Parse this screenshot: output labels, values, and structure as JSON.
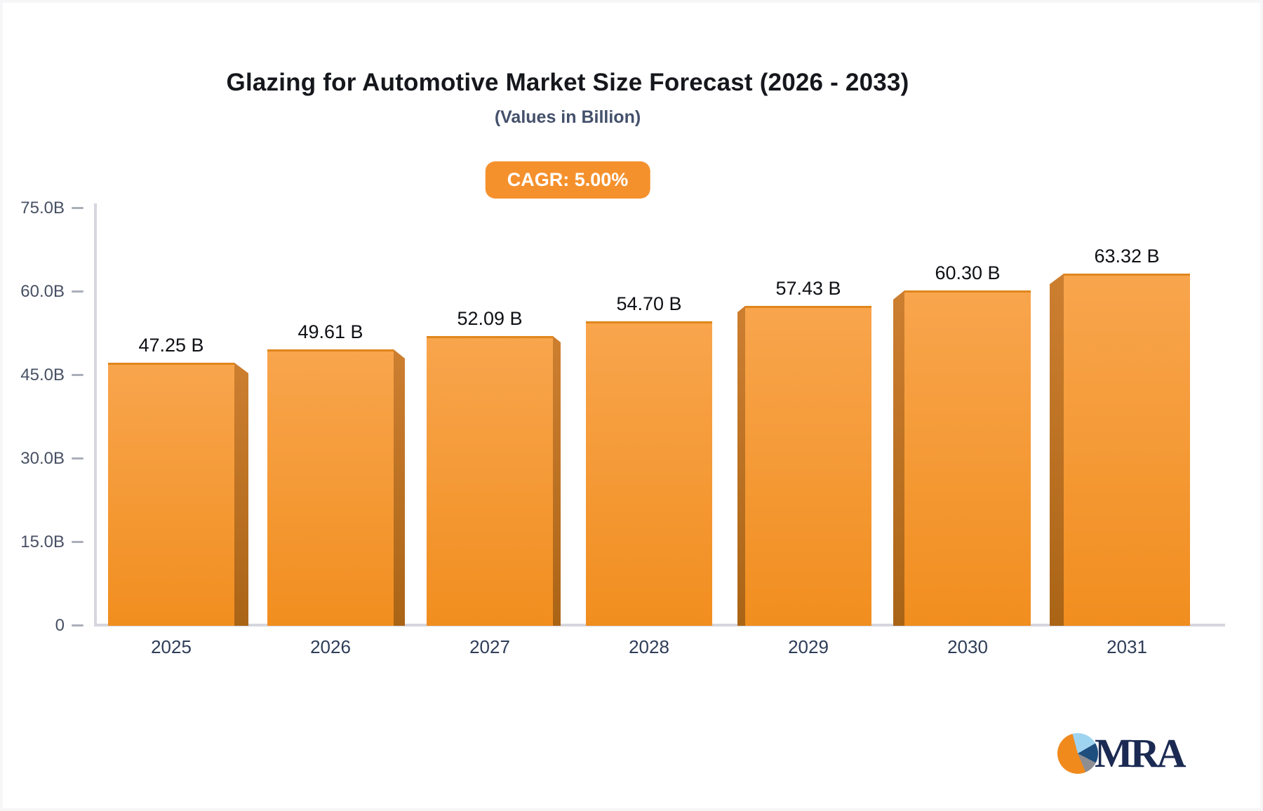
{
  "header": {
    "title": "Glazing for Automotive Market Size Forecast (2026 - 2033)",
    "subtitle": "(Values in Billion)",
    "cagr_label": "CAGR: 5.00%"
  },
  "chart_data": {
    "type": "bar",
    "title": "Glazing for Automotive Market Size Forecast (2026 - 2033)",
    "subtitle": "(Values in Billion)",
    "cagr_pct": 5.0,
    "categories": [
      "2025",
      "2026",
      "2027",
      "2028",
      "2029",
      "2030",
      "2031"
    ],
    "values": [
      47.25,
      49.61,
      52.09,
      54.7,
      57.43,
      60.3,
      63.32
    ],
    "value_labels": [
      "47.25 B",
      "49.61 B",
      "52.09 B",
      "54.70 B",
      "57.43 B",
      "60.30 B",
      "63.32 B"
    ],
    "unit": "Billion",
    "ylim": [
      0,
      75
    ],
    "y_ticks": [
      {
        "value": 75,
        "label": "75.0B"
      },
      {
        "value": 60,
        "label": "60.0B"
      },
      {
        "value": 45,
        "label": "45.0B"
      },
      {
        "value": 30,
        "label": "30.0B"
      },
      {
        "value": 15,
        "label": "15.0B"
      },
      {
        "value": 0,
        "label": "0"
      }
    ],
    "grid": false,
    "legend": "none",
    "bar_style_3d": true
  },
  "branding": {
    "logo_text": "MRA"
  },
  "colors": {
    "bar_face_top": "#f8a54d",
    "bar_face_bottom": "#f18e1f",
    "bar_top_edge": "#e0861c",
    "bar_side_top": "#cd7f30",
    "bar_side_bottom": "#aa6416",
    "badge_bg": "#f5912d",
    "axis_line": "#d6d6de",
    "tick_mark": "#a9aeb9",
    "y_label": "#475063",
    "x_label": "#2e3d58",
    "value_label": "#0e1014",
    "logo_navy": "#1b2a52",
    "logo_pie_orange": "#f08a1d",
    "logo_pie_lightblue": "#9fd4f0",
    "logo_pie_navy": "#1d4e7e",
    "logo_pie_gray": "#8e8d92"
  }
}
